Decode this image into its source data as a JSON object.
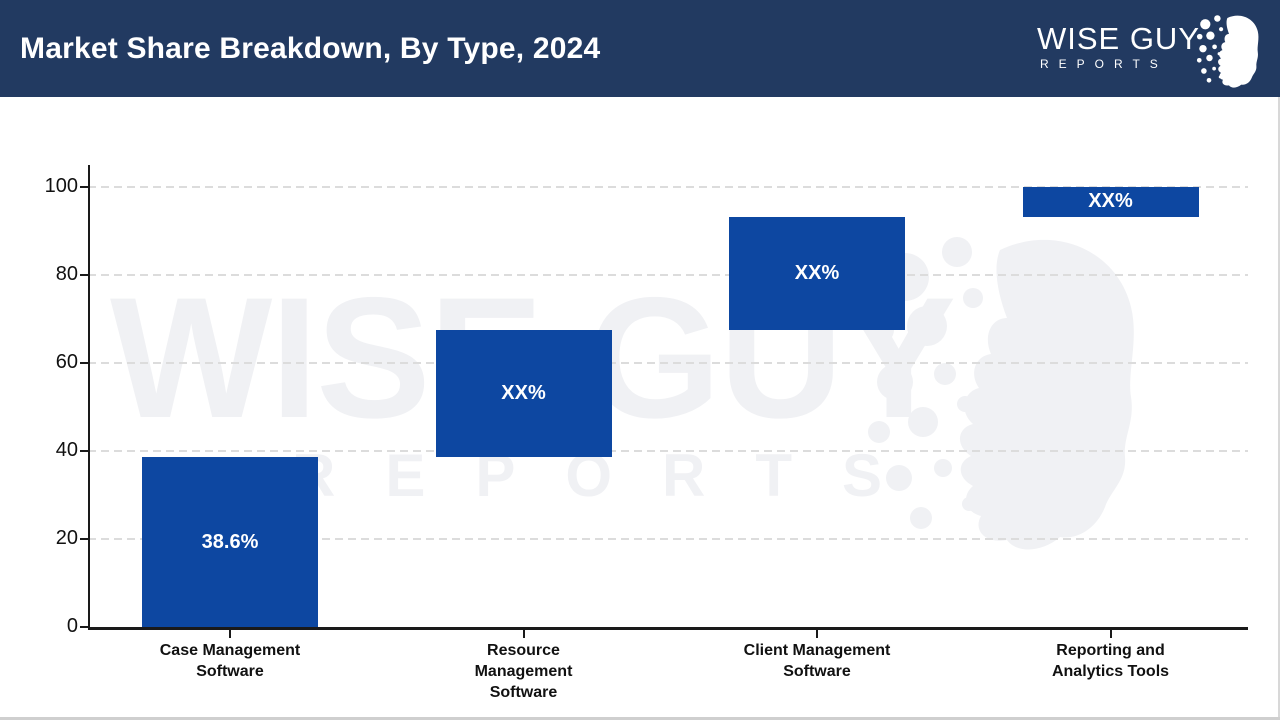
{
  "header": {
    "title": "Market Share Breakdown, By Type, 2024",
    "logo": {
      "line1": "WISE GUY",
      "line2": "REPORTS"
    }
  },
  "watermark": {
    "line1": "WISE GUY",
    "line2": "REPORTS"
  },
  "colors": {
    "header_bg": "#223a61",
    "bar": "#0d47a1",
    "grid": "#dcdcdc",
    "watermark": "#f0f1f4",
    "axis": "#1a1a1a",
    "bar_label_text": "#ffffff"
  },
  "chart_data": {
    "type": "bar",
    "subtype": "waterfall",
    "title": "Market Share Breakdown, By Type, 2024",
    "xlabel": "",
    "ylabel": "",
    "categories": [
      "Case Management Software",
      "Resource Management Software",
      "Client Management Software",
      "Reporting and Analytics Tools"
    ],
    "category_lines": [
      [
        "Case Management",
        "Software"
      ],
      [
        "Resource",
        "Management",
        "Software"
      ],
      [
        "Client Management",
        "Software"
      ],
      [
        "Reporting and",
        "Analytics Tools"
      ]
    ],
    "segments": [
      {
        "category": "Case Management Software",
        "start": 0,
        "end": 38.6,
        "label": "38.6%"
      },
      {
        "category": "Resource Management Software",
        "start": 38.6,
        "end": 67.5,
        "label": "XX%"
      },
      {
        "category": "Client Management Software",
        "start": 67.5,
        "end": 93.2,
        "label": "XX%"
      },
      {
        "category": "Reporting and Analytics Tools",
        "start": 93.2,
        "end": 100,
        "label": "XX%"
      }
    ],
    "yticks": [
      0,
      20,
      40,
      60,
      80,
      100
    ],
    "ylim": [
      0,
      105
    ],
    "grid": "horizontal-dashed",
    "legend": null
  }
}
